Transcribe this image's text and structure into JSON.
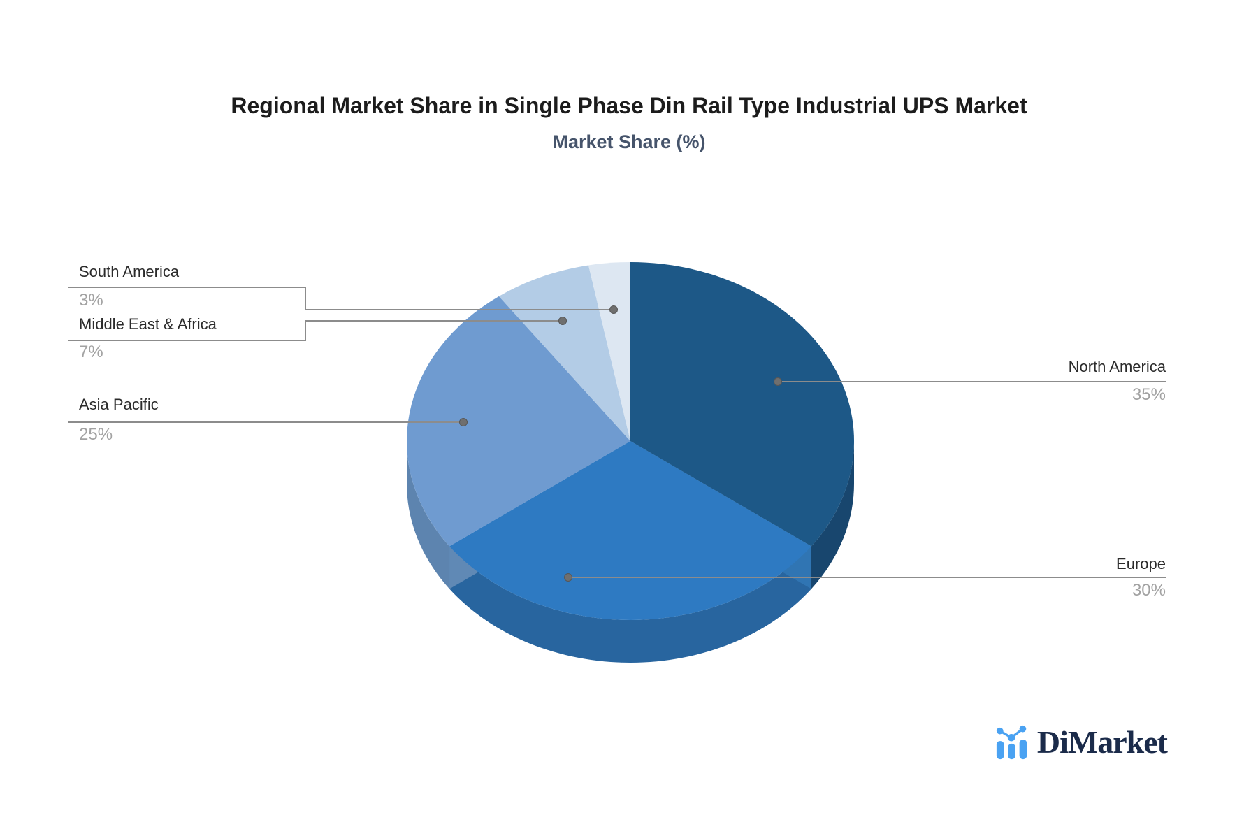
{
  "header": {
    "title": "Regional Market Share in Single Phase Din Rail Type Industrial UPS Market",
    "subtitle": "Market Share (%)"
  },
  "chart_data": {
    "type": "pie",
    "title": "Regional Market Share in Single Phase Din Rail Type Industrial UPS Market",
    "unit": "%",
    "effect": "3d",
    "direction": "clockwise",
    "start_angle_deg": 0,
    "legend_position": "callout-labels",
    "connector_color": "#8c8c8c",
    "slices": [
      {
        "label": "North America",
        "value": 35,
        "value_display": "35%",
        "color": "#1d5887",
        "side_color": "#18466e"
      },
      {
        "label": "Europe",
        "value": 30,
        "value_display": "30%",
        "color": "#2e7ac2",
        "side_color": "#28659f"
      },
      {
        "label": "Asia Pacific",
        "value": 25,
        "value_display": "25%",
        "color": "#6f9bd0",
        "side_color": "#5d84af"
      },
      {
        "label": "Middle East & Africa",
        "value": 7,
        "value_display": "7%",
        "color": "#b3cce6",
        "side_color": "#9bb4cf"
      },
      {
        "label": "South America",
        "value": 3,
        "value_display": "3%",
        "color": "#dde7f2",
        "side_color": "#c3cedd"
      }
    ]
  },
  "brand": {
    "name": "DiMarket",
    "icon": "bar-line-chart-icon",
    "icon_color": "#4aa2f2",
    "text_color": "#1b2b4a"
  },
  "colors": {
    "title": "#1c1c1c",
    "subtitle": "#46546b",
    "label_text": "#2b2b2b",
    "value_text": "#a2a2a2",
    "connector": "#8c8c8c",
    "background": "#ffffff"
  }
}
